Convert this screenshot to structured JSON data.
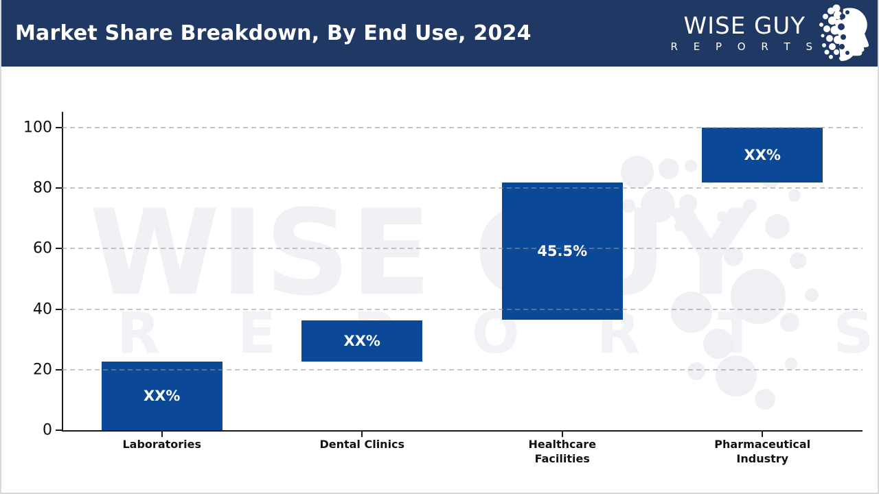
{
  "header": {
    "title": "Market Share Breakdown, By End Use, 2024",
    "bg_color": "#1f3864",
    "logo": {
      "line1": "WISE GUY",
      "line2": "R E P O R T S"
    }
  },
  "watermark": {
    "line1": "WISE GUY",
    "line2": "R E P O R T S"
  },
  "chart_data": {
    "type": "bar",
    "subtype": "floating-waterfall-columns",
    "title": "Market Share Breakdown, By End Use, 2024",
    "categories": [
      "Laboratories",
      "Dental Clinics",
      "Healthcare Facilities",
      "Pharmaceutical Industry"
    ],
    "bars": [
      {
        "category": "Laboratories",
        "start": 0,
        "end": 22.7,
        "label": "XX%"
      },
      {
        "category": "Dental Clinics",
        "start": 22.7,
        "end": 36.3,
        "label": "XX%"
      },
      {
        "category": "Healthcare Facilities",
        "start": 36.4,
        "end": 81.9,
        "label": "45.5%"
      },
      {
        "category": "Pharmaceutical Industry",
        "start": 81.8,
        "end": 100,
        "label": "XX%"
      }
    ],
    "ylim": [
      0,
      100
    ],
    "yticks": [
      0,
      20,
      40,
      60,
      80,
      100
    ],
    "xlabel": "",
    "ylabel": "",
    "grid": "horizontal-dashed-over-bars",
    "legend": "none",
    "bar_color": "#0b4898",
    "bar_label_color": "#ffffff",
    "axis_color": "#1a1a1a",
    "grid_color": "#c8c8c8",
    "watermark_color": "#f0f1f4"
  }
}
